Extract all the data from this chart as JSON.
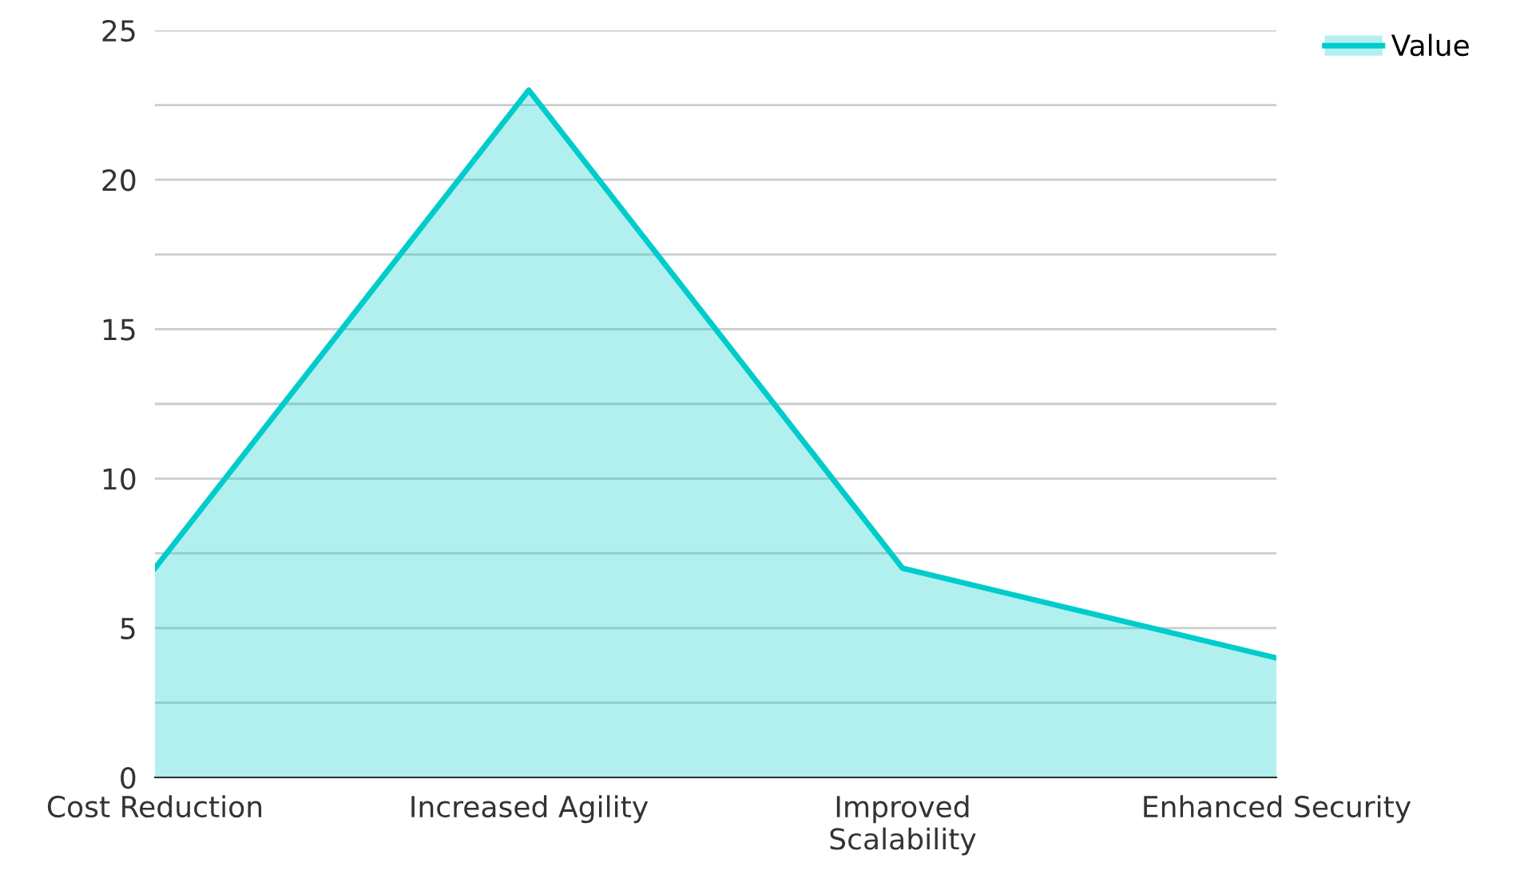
{
  "chart_data": {
    "type": "area",
    "categories": [
      "Cost Reduction",
      "Increased Agility",
      "Improved\nScalability",
      "Enhanced Security"
    ],
    "series": [
      {
        "name": "Value",
        "color": "#00cccc",
        "values": [
          7,
          23,
          7,
          4
        ]
      }
    ],
    "ylim": [
      0,
      25
    ],
    "yticks": [
      0,
      {
        "value": 2.5,
        "label": null
      },
      5,
      {
        "value": 7.5,
        "label": null
      },
      10,
      {
        "value": 12.5,
        "label": null
      },
      15,
      {
        "value": 17.5,
        "label": null
      },
      20,
      {
        "value": 22.5,
        "label": null
      },
      25
    ],
    "grid": "y",
    "legend": "top right"
  }
}
